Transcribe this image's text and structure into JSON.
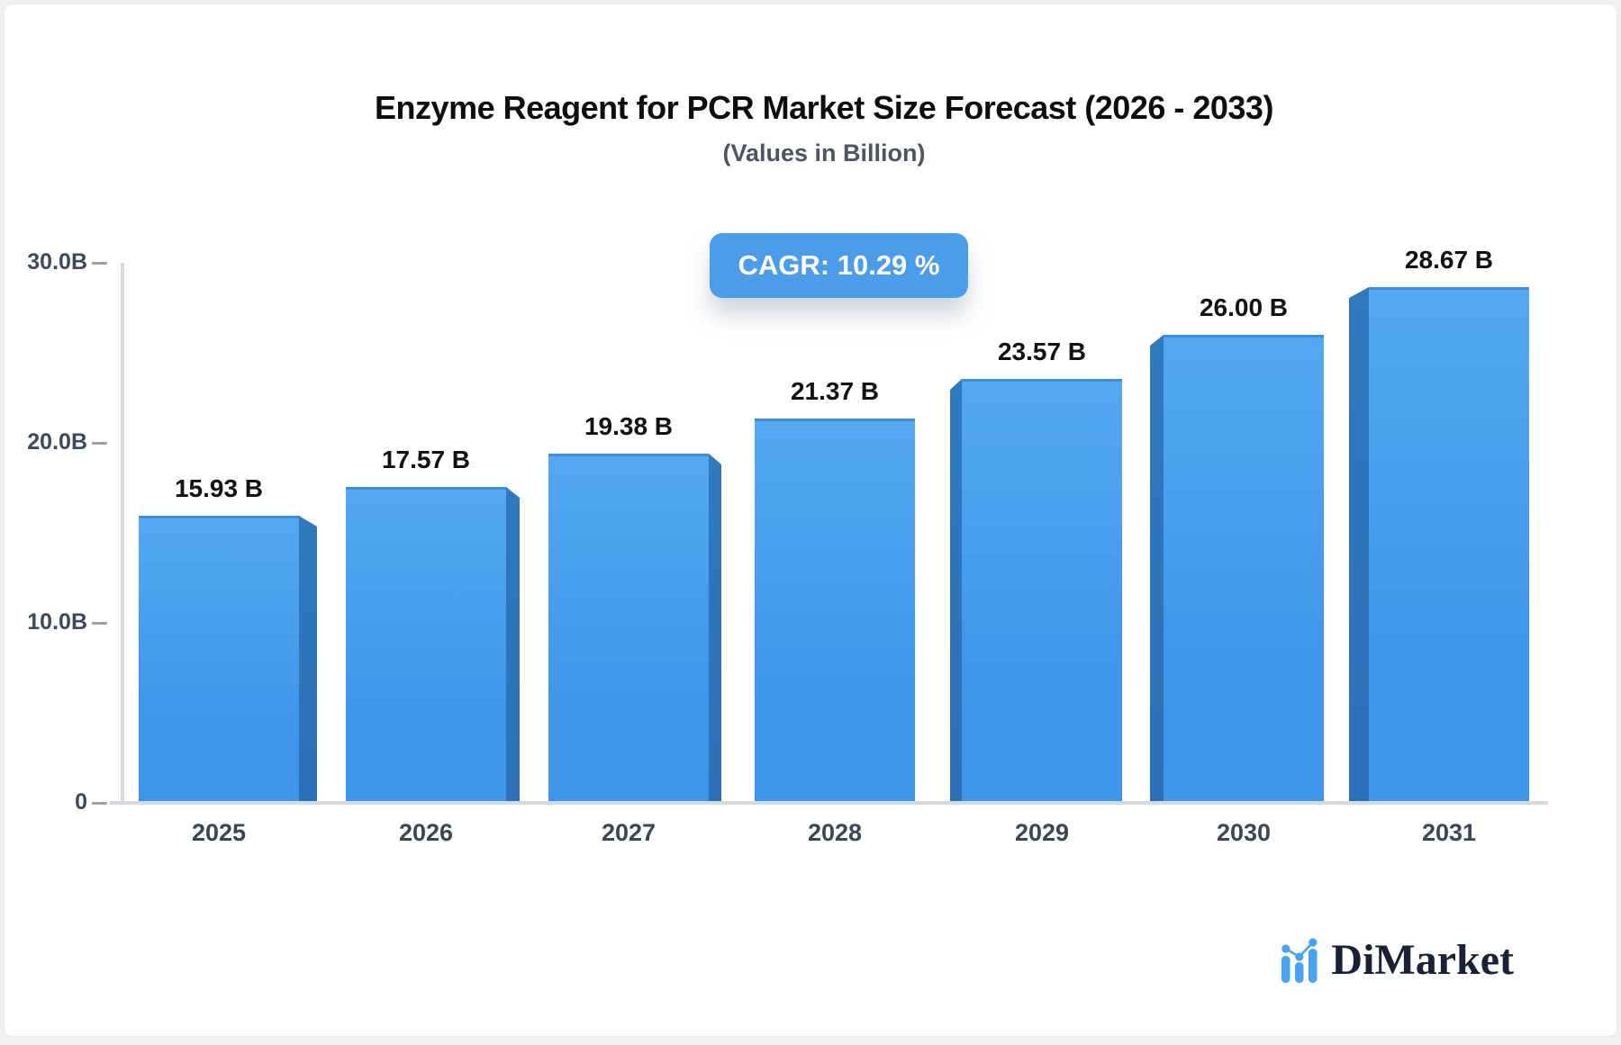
{
  "header": {
    "title": "Enzyme Reagent for PCR Market Size Forecast (2026 - 2033)",
    "subtitle": "(Values in Billion)"
  },
  "badge": {
    "label": "CAGR: 10.29 %"
  },
  "chart_data": {
    "type": "bar",
    "title": "Enzyme Reagent for PCR Market Size Forecast (2026 - 2033)",
    "subtitle": "(Values in Billion)",
    "cagr_label": "CAGR: 10.29 %",
    "cagr_percent": 10.29,
    "categories": [
      "2025",
      "2026",
      "2027",
      "2028",
      "2029",
      "2030",
      "2031"
    ],
    "values": [
      15.93,
      17.57,
      19.38,
      21.37,
      23.57,
      26.0,
      28.67
    ],
    "value_labels": [
      "15.93 B",
      "17.57 B",
      "19.38 B",
      "21.37 B",
      "23.57 B",
      "26.00 B",
      "28.67 B"
    ],
    "xlabel": "",
    "ylabel": "",
    "ylim": [
      0,
      30
    ],
    "yticks": [
      {
        "value": 30,
        "label": "30.0B"
      },
      {
        "value": 20,
        "label": "20.0B"
      },
      {
        "value": 10,
        "label": "10.0B"
      },
      {
        "value": 0,
        "label": "0"
      }
    ],
    "grid": false,
    "legend": false,
    "bar_style": "3d-perspective"
  },
  "logo": {
    "text": "DiMarket",
    "icon": "mini-bar-chart-icon"
  },
  "colors": {
    "badge_bg": "#4B9DEA",
    "bar_face_top": "#54A8F1",
    "bar_face_bottom": "#3E96E9",
    "bar_face_edge": "#3F8DDC",
    "bar_side": "#2D72B8",
    "axis_line": "#D6DADE",
    "tick_dash": "#9AA2AE",
    "tick_text": "#3D4A5E",
    "bar_label_text": "#101214",
    "year_label_text": "#3A4757",
    "logo_blue": "#4AA2F2",
    "logo_navy": "#182136"
  }
}
